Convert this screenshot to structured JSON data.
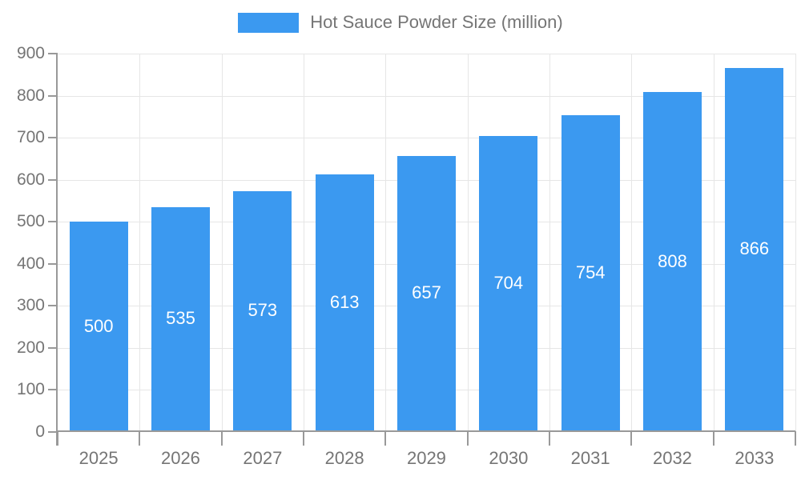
{
  "chart_data": {
    "type": "bar",
    "title": "Hot Sauce Powder Size (million)",
    "categories": [
      "2025",
      "2026",
      "2027",
      "2028",
      "2029",
      "2030",
      "2031",
      "2032",
      "2033"
    ],
    "values": [
      500,
      535,
      573,
      613,
      657,
      704,
      754,
      808,
      866
    ],
    "xlabel": "",
    "ylabel": "",
    "ylim": [
      0,
      900
    ],
    "ytick_step": 100,
    "yticks": [
      0,
      100,
      200,
      300,
      400,
      500,
      600,
      700,
      800,
      900
    ],
    "grid": true,
    "legend_position": "top",
    "legend_label": "Hot Sauce Powder Size (million)",
    "value_labels": [
      "500",
      "535",
      "573",
      "613",
      "657",
      "704",
      "754",
      "808",
      "866"
    ],
    "colors": {
      "bar": "#3b99f0",
      "value_label": "#ffffff",
      "axis": "#999999",
      "gridline": "#e6e6e6",
      "tick_label": "#757575"
    }
  }
}
